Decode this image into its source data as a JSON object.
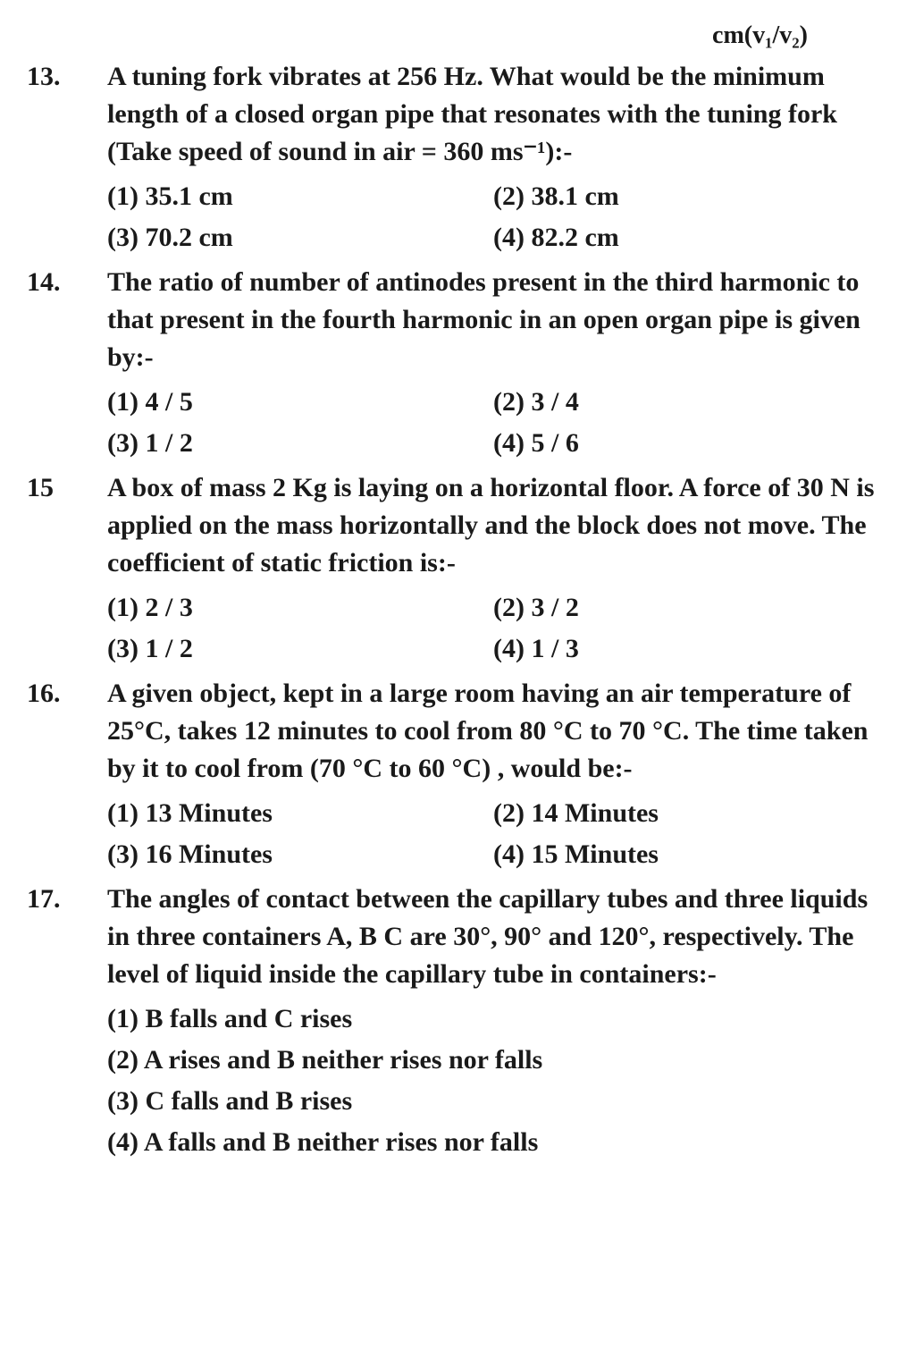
{
  "top_fragment": "cm(v₁/v₂)",
  "questions": [
    {
      "number": "13.",
      "text": "A tuning fork vibrates at 256 Hz. What would be the minimum length of a closed organ pipe that resonates with the tuning fork (Take speed of sound in air = 360 ms⁻¹):-",
      "layout": "two-col",
      "options": [
        "(1) 35.1 cm",
        "(2) 38.1 cm",
        "(3) 70.2 cm",
        "(4) 82.2 cm"
      ]
    },
    {
      "number": "14.",
      "text": "The ratio of number of antinodes present in the third harmonic to that present in the fourth harmonic in an open organ pipe is given by:-",
      "layout": "two-col",
      "options": [
        "(1) 4 / 5",
        "(2) 3 / 4",
        "(3) 1 / 2",
        "(4) 5 / 6"
      ]
    },
    {
      "number": "15",
      "text": "A box of mass 2 Kg is laying on a horizontal floor. A force of 30 N is applied on the mass horizontally and the block does not move. The coefficient of static friction is:-",
      "layout": "two-col",
      "options": [
        "(1) 2 / 3",
        "(2) 3 / 2",
        "(3) 1 / 2",
        "(4) 1 / 3"
      ]
    },
    {
      "number": "16.",
      "text": "A given object, kept in a large room having an air temperature of 25°C, takes 12 minutes to cool from 80 °C to 70 °C. The time taken by it to cool from (70 °C to 60 °C) , would be:-",
      "layout": "two-col",
      "options": [
        "(1) 13 Minutes",
        "(2) 14 Minutes",
        "(3) 16 Minutes",
        "(4) 15 Minutes"
      ]
    },
    {
      "number": "17.",
      "text": "The angles of contact between the capillary tubes and three liquids in three containers A, B C are 30°, 90° and 120°, respectively. The level of liquid inside the capillary tube in containers:-",
      "layout": "one-col",
      "options": [
        "(1) B falls and C rises",
        "(2) A rises and B neither rises nor falls",
        "(3) C falls and B rises",
        "(4) A falls and B neither rises nor falls"
      ]
    }
  ]
}
